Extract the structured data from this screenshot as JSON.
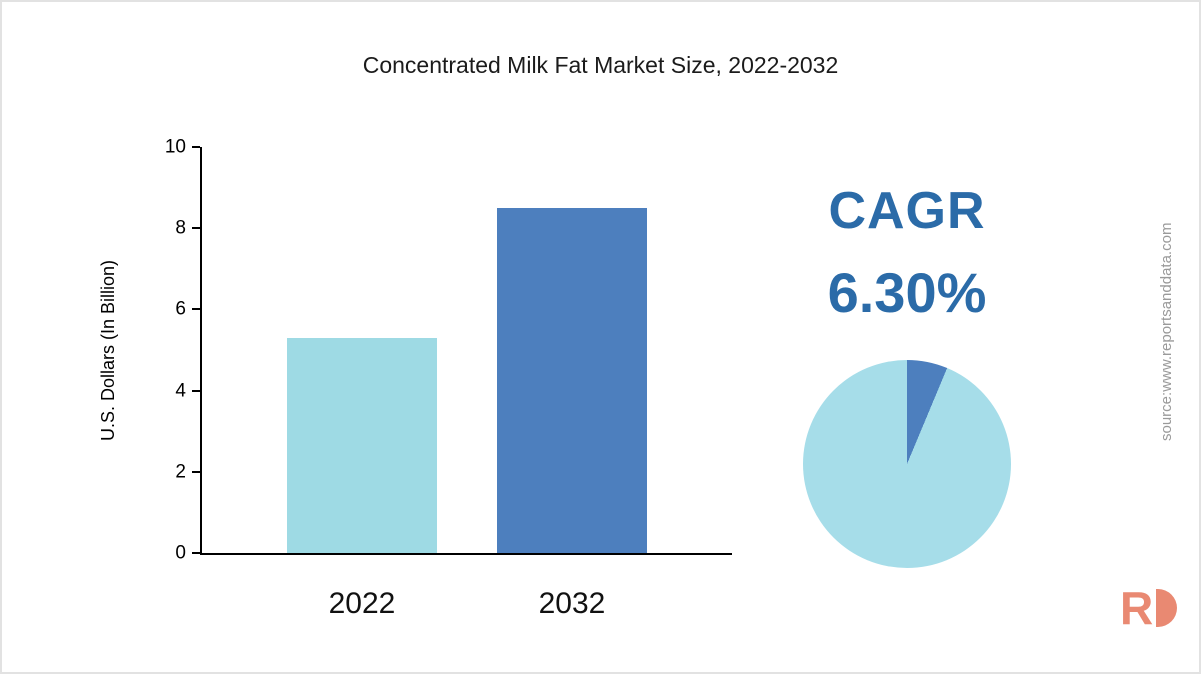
{
  "header": {
    "title": "Concentrated Milk Fat Market Size, 2022-2032"
  },
  "cagr": {
    "label": "CAGR",
    "value": "6.30%"
  },
  "source": {
    "text": "source:www.reportsanddata.com"
  },
  "logo": {
    "letter": "R"
  },
  "colors": {
    "bar_2022": "#9edae4",
    "bar_2032": "#4d7fbe",
    "pie_slice": "#4d7fbe",
    "pie_remainder": "#a6dde9",
    "cagr_blue": "#2b6ba8",
    "logo_coral": "#e98972",
    "source_gray": "#9a9a9a"
  },
  "chart_data": [
    {
      "type": "bar",
      "title": "Concentrated Milk Fat Market Size, 2022-2032",
      "categories": [
        "2022",
        "2032"
      ],
      "values": [
        5.3,
        8.5
      ],
      "xlabel": "",
      "ylabel": "U.S. Dollars (In Billion)",
      "ylim": [
        0,
        10
      ],
      "yticks": [
        0,
        2,
        4,
        6,
        8,
        10
      ],
      "bar_colors": [
        "#9edae4",
        "#4d7fbe"
      ],
      "grid": false
    },
    {
      "type": "pie",
      "labels": [
        "CAGR slice",
        "Remainder"
      ],
      "values": [
        6.3,
        93.7
      ],
      "colors": [
        "#4d7fbe",
        "#a6dde9"
      ],
      "start_angle_deg": 0,
      "direction": "clockwise",
      "annotation": "CAGR 6.30%"
    }
  ]
}
